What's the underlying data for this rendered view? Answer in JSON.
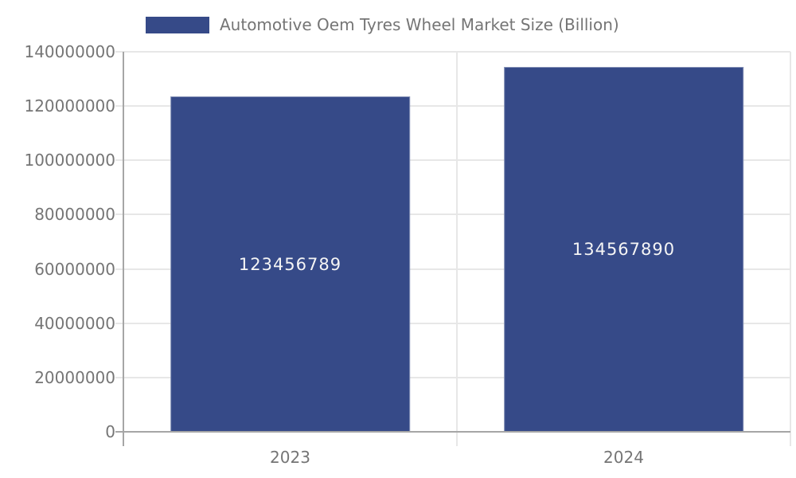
{
  "chart_data": {
    "type": "bar",
    "title": "Automotive Oem Tyres Wheel Market Size (Billion)",
    "categories": [
      "2023",
      "2024"
    ],
    "series": [
      {
        "name": "Automotive Oem Tyres Wheel Market Size (Billion)",
        "values": [
          123456789,
          134567890
        ],
        "data_labels": [
          "123456789",
          "134567890"
        ]
      }
    ],
    "xlabel": "",
    "ylabel": "",
    "ylim": [
      0,
      140000000
    ],
    "yticks": [
      0,
      20000000,
      40000000,
      60000000,
      80000000,
      100000000,
      120000000,
      140000000
    ],
    "grid": "on",
    "legend_position": "top",
    "bar_width_fraction": 0.36,
    "colors": {
      "bar": "#364a88",
      "grid_line": "#e7e7e7",
      "axis_line": "#a6a6a6",
      "tick_text": "#757575",
      "bar_label_text": "#f5f5f5",
      "background": "#ffffff"
    }
  }
}
